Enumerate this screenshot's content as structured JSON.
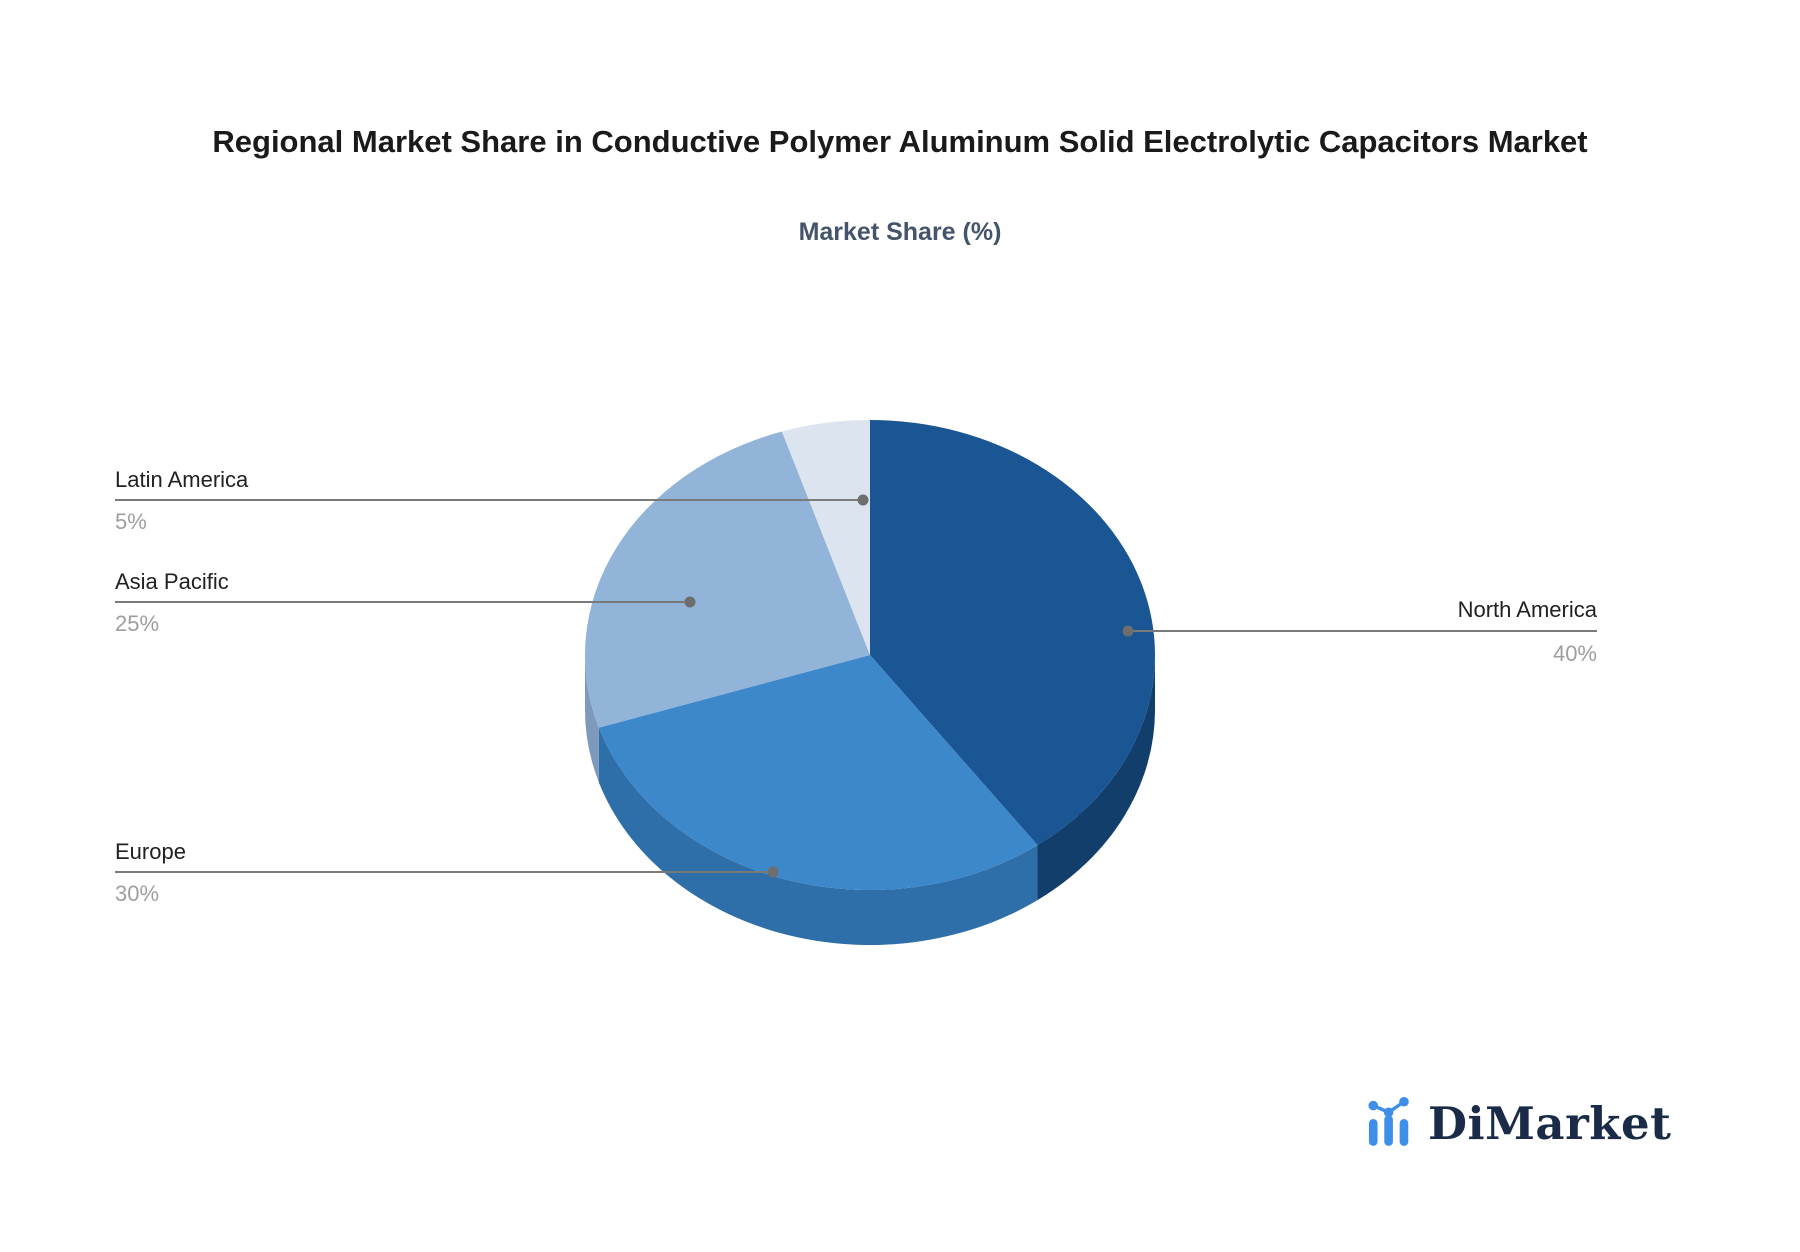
{
  "header": {
    "title": "Regional Market Share in Conductive Polymer Aluminum Solid Electrolytic Capacitors Market",
    "subtitle": "Market Share (%)"
  },
  "chart_data": {
    "type": "pie",
    "title": "Regional Market Share in Conductive Polymer Aluminum Solid Electrolytic Capacitors Market",
    "subtitle": "Market Share (%)",
    "unit": "%",
    "style": "3d-pie",
    "direction": "clockwise",
    "start_angle_deg": 0,
    "legend_position": "callout-labels",
    "segments": [
      {
        "label": "North America",
        "value": 40,
        "color": "#1a5694",
        "side_color": "#123e6b"
      },
      {
        "label": "Europe",
        "value": 30,
        "color": "#3d87cb",
        "side_color": "#2e6ea9"
      },
      {
        "label": "Asia Pacific",
        "value": 25,
        "color": "#92b4d9",
        "side_color": "#7d9abc"
      },
      {
        "label": "Latin America",
        "value": 5,
        "color": "#dce4f0",
        "side_color": "#c3cfe0"
      }
    ]
  },
  "callouts": {
    "north_america": {
      "name": "North America",
      "value_text": "40%"
    },
    "europe": {
      "name": "Europe",
      "value_text": "30%"
    },
    "asia_pacific": {
      "name": "Asia Pacific",
      "value_text": "25%"
    },
    "latin_america": {
      "name": "Latin America",
      "value_text": "5%"
    }
  },
  "logo": {
    "text": "DiMarket"
  },
  "colors": {
    "background": "#ffffff",
    "title_text": "#1a1a1a",
    "subtitle_text": "#44546a",
    "label_text": "#212121",
    "value_text": "#9e9e9e",
    "leader_line": "#7a7a7a",
    "leader_dot": "#6e6e6e",
    "logo_icon": "#3f8fe8",
    "logo_text": "#1a2b47"
  }
}
